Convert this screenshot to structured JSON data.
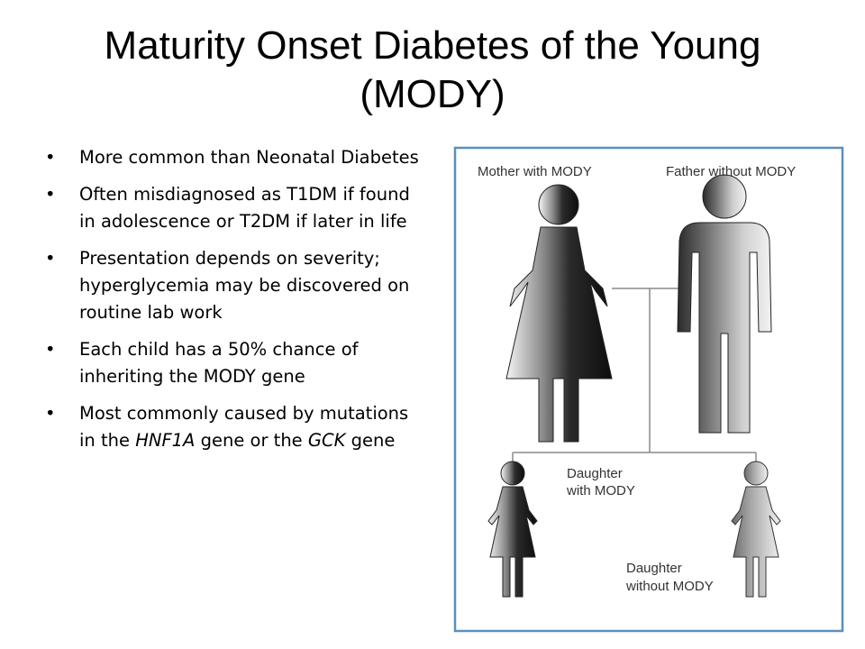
{
  "slide": {
    "title": "Maturity Onset Diabetes of the Young (MODY)",
    "bullet_glyph": "•",
    "bullets": [
      {
        "text": "More common than Neonatal Diabetes"
      },
      {
        "text": "Often misdiagnosed as T1DM if found in adolescence or T2DM if later in life"
      },
      {
        "text": "Presentation depends on severity; hyperglycemia may be discovered on routine lab work"
      },
      {
        "text": "Each child has a 50% chance of inheriting the MODY gene"
      },
      {
        "text_before": "Most commonly caused by mutations in the ",
        "gene1": "HNF1A",
        "text_middle": " gene or the ",
        "gene2": "GCK",
        "text_after": " gene"
      }
    ]
  },
  "pedigree": {
    "frame_color": "#5b8fbf",
    "labels": {
      "mother": "Mother with MODY",
      "father": "Father without MODY",
      "daughter1_line1": "Daughter",
      "daughter1_line2": "with MODY",
      "daughter2_line1": "Daughter",
      "daughter2_line2": "without MODY"
    },
    "figures": [
      {
        "role": "mother",
        "sex": "female",
        "has_mody": true
      },
      {
        "role": "father",
        "sex": "male",
        "has_mody": false
      },
      {
        "role": "daughter1",
        "sex": "female",
        "has_mody": true
      },
      {
        "role": "daughter2",
        "sex": "female",
        "has_mody": false
      }
    ]
  }
}
